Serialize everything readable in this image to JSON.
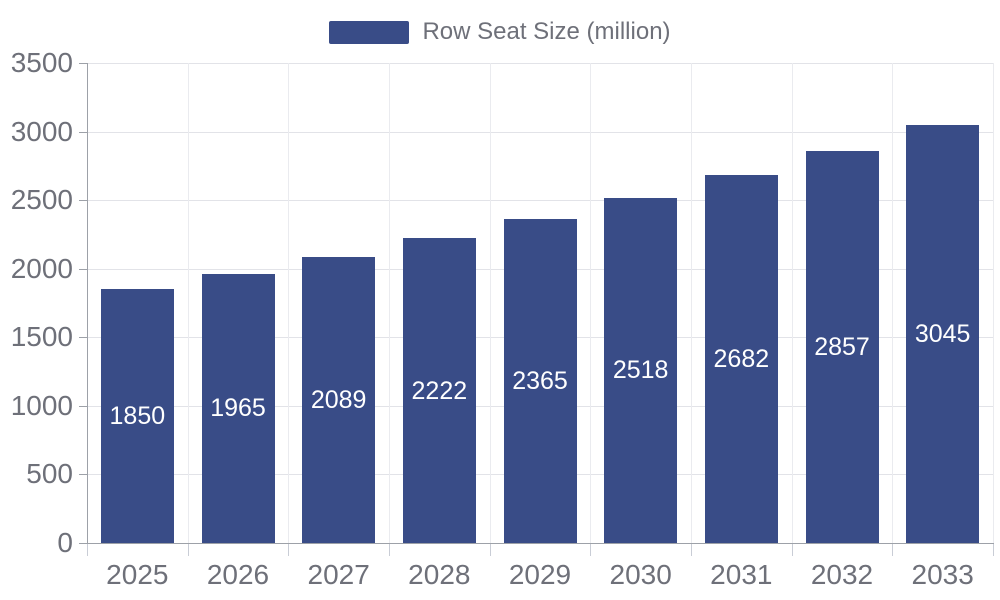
{
  "chart_data": {
    "type": "bar",
    "legend": "Row Seat Size (million)",
    "categories": [
      "2025",
      "2026",
      "2027",
      "2028",
      "2029",
      "2030",
      "2031",
      "2032",
      "2033"
    ],
    "values": [
      1850,
      1965,
      2089,
      2222,
      2365,
      2518,
      2682,
      2857,
      3045
    ],
    "ylim": [
      0,
      3500
    ],
    "yticks": [
      0,
      500,
      1000,
      1500,
      2000,
      2500,
      3000,
      3500
    ],
    "xlabel": "",
    "ylabel": "",
    "grid": true,
    "legend_position": "top-center",
    "bar_color": "#394C87",
    "value_label_color": "#FFFFFF",
    "axis_text_color": "#6E7079"
  }
}
